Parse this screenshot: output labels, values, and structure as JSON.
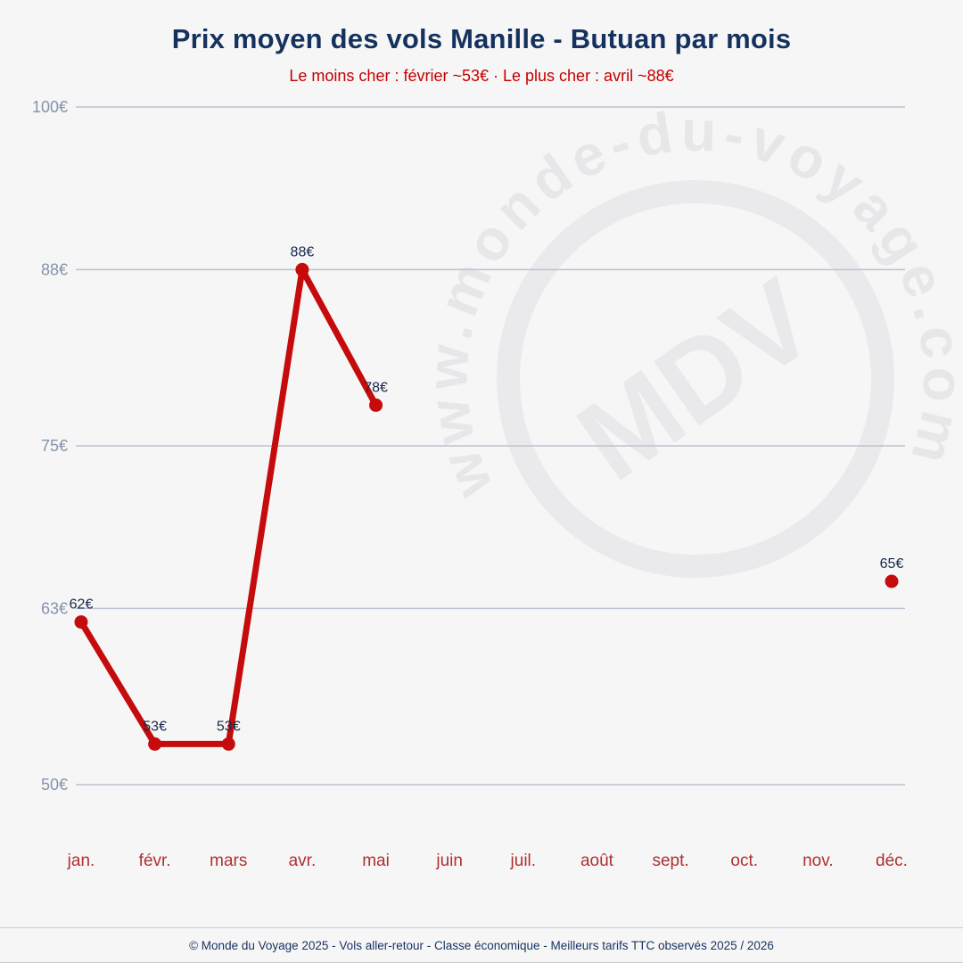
{
  "page": {
    "background": "#f6f6f7"
  },
  "chart_data": {
    "type": "line",
    "title": "Prix moyen des vols Manille - Butuan par mois",
    "subtitle": "Le moins cher : février ~53€ · Le plus cher : avril ~88€",
    "categories": [
      "jan.",
      "févr.",
      "mars",
      "avr.",
      "mai",
      "juin",
      "juil.",
      "août",
      "sept.",
      "oct.",
      "nov.",
      "déc."
    ],
    "values": [
      62,
      53,
      53,
      88,
      78,
      null,
      null,
      null,
      null,
      null,
      null,
      65
    ],
    "point_labels": [
      "62€",
      "53€",
      "53€",
      "88€",
      "78€",
      "",
      "",
      "",
      "",
      "",
      "",
      "65€"
    ],
    "ylim": [
      50,
      100
    ],
    "yticks": [
      100,
      88,
      75,
      63,
      50
    ],
    "ytick_labels": [
      "100€",
      "88€",
      "75€",
      "63€",
      "50€"
    ],
    "grid": true,
    "legend": "none",
    "line_color": "#c50b0b",
    "point_color": "#c50b0b",
    "grid_color": "#b9c2cf",
    "ytick_color": "#8494a9",
    "xtick_color": "#b03030",
    "point_label_color": "#16294a",
    "title_color": "#15325f",
    "subtitle_color": "#c40000"
  },
  "watermark": {
    "circle_text": "www.monde-du-voyage.com",
    "center_text": "MDV"
  },
  "footer": {
    "text": "© Monde du Voyage 2025 - Vols aller-retour - Classe économique - Meilleurs tarifs TTC observés 2025 / 2026"
  }
}
